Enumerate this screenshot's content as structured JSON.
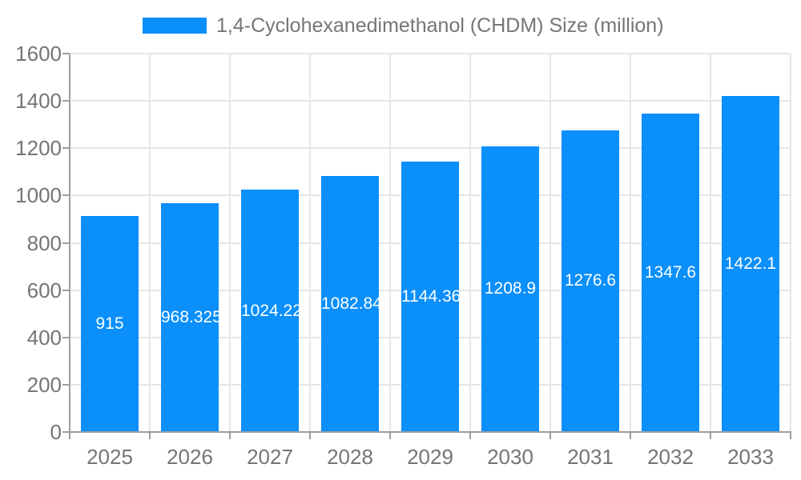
{
  "legend": {
    "label": "1,4-Cyclohexanedimethanol (CHDM) Size (million)"
  },
  "colors": {
    "bar_fill": "#0a8ffb",
    "bar_label_text": "#ffffff",
    "axis_text": "#757575",
    "axis_line": "#9e9e9e",
    "grid_line": "#e6e6e6",
    "background": "#ffffff"
  },
  "chart_data": {
    "type": "bar",
    "title": "1,4-Cyclohexanedimethanol (CHDM) Size (million)",
    "categories": [
      "2025",
      "2026",
      "2027",
      "2028",
      "2029",
      "2030",
      "2031",
      "2032",
      "2033"
    ],
    "values": [
      915,
      968.325,
      1024.22,
      1082.84,
      1144.36,
      1208.9,
      1276.6,
      1347.6,
      1422.1
    ],
    "bar_labels": [
      "915",
      "968.325",
      "1024.22",
      "1082.84",
      "1144.36",
      "1208.9",
      "1276.6",
      "1347.6",
      "1422.1"
    ],
    "xlabel": "",
    "ylabel": "",
    "ylim": [
      0,
      1600
    ],
    "ytick_interval": 200,
    "ytick_labels": [
      "0",
      "200",
      "400",
      "600",
      "800",
      "1000",
      "1200",
      "1400",
      "1600"
    ],
    "grid": true,
    "legend_position": "top",
    "value_label_position": "inside-center"
  }
}
